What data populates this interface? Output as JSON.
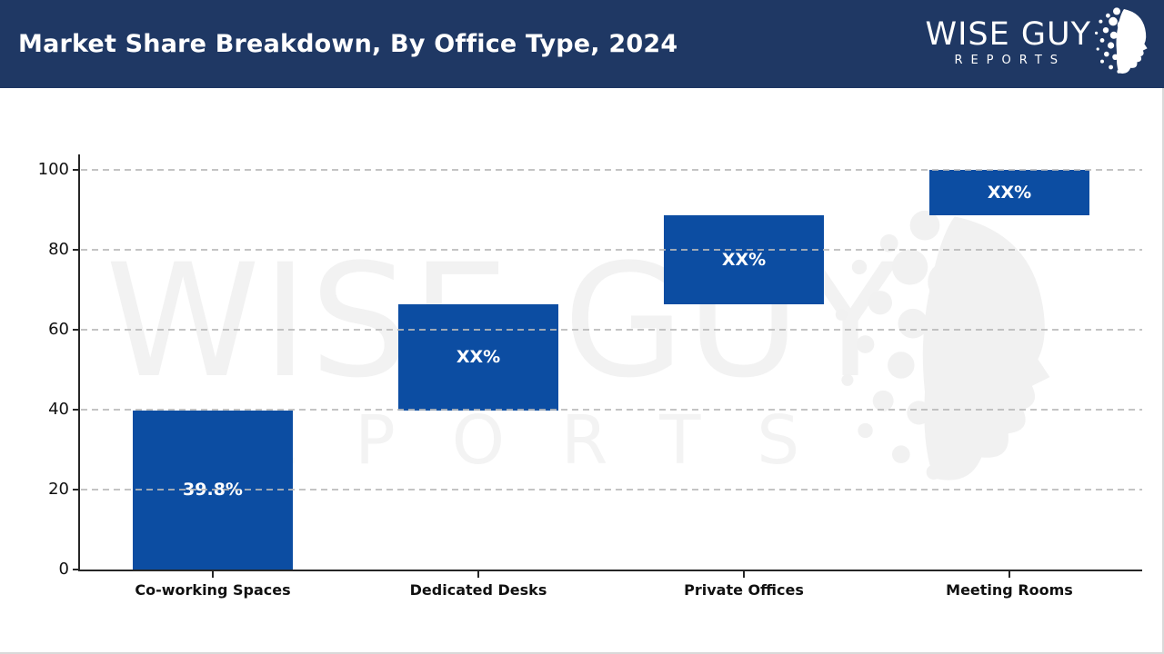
{
  "header": {
    "title": "Market Share Breakdown, By Office Type, 2024",
    "logo": {
      "wordmark": "WISE GUY",
      "subtext": "REPORTS"
    }
  },
  "watermark": {
    "line1": "WISE GUY",
    "line2": "REPORTS"
  },
  "chart_data": {
    "type": "bar",
    "subtype": "waterfall",
    "title": "Market Share Breakdown, By Office Type, 2024",
    "categories": [
      "Co-working Spaces",
      "Dedicated Desks",
      "Private Offices",
      "Meeting Rooms"
    ],
    "segments": [
      {
        "category": "Co-working Spaces",
        "start": 0,
        "end": 39.8,
        "label": "39.8%"
      },
      {
        "category": "Dedicated Desks",
        "start": 39.8,
        "end": 66.4,
        "label": "XX%"
      },
      {
        "category": "Private Offices",
        "start": 66.4,
        "end": 88.6,
        "label": "XX%"
      },
      {
        "category": "Meeting Rooms",
        "start": 88.6,
        "end": 100,
        "label": "XX%"
      }
    ],
    "y_ticks": [
      0,
      20,
      40,
      60,
      80,
      100
    ],
    "ylim": [
      0,
      100
    ],
    "xlabel": "",
    "ylabel": "",
    "legend": "none",
    "grid": "horizontal dashed lines drawn over bars",
    "bar_color": "#0C4DA2",
    "bar_label_color": "#FFFFFF"
  },
  "colors": {
    "header_bg": "#1F3864",
    "background": "#FFFFFF",
    "axis": "#262626",
    "gridline": "#C9C9C9",
    "watermark": "#F2F2F2",
    "page_border": "#D9D9D9"
  }
}
